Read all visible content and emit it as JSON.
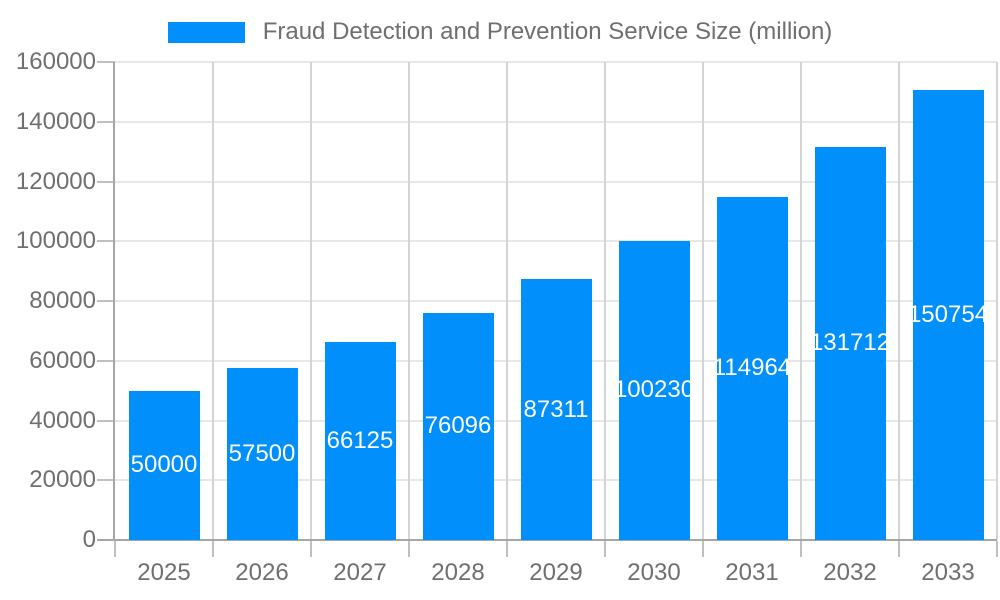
{
  "chart_data": {
    "type": "bar",
    "title": "Fraud Detection and Prevention Service Size (million)",
    "categories": [
      "2025",
      "2026",
      "2027",
      "2028",
      "2029",
      "2030",
      "2031",
      "2032",
      "2033"
    ],
    "values": [
      50000,
      57500,
      66125,
      76096,
      87311,
      100230,
      114964,
      131712,
      150754
    ],
    "bar_labels": [
      "50000",
      "57500",
      "66125",
      "76096",
      "87311",
      "100230",
      "114964",
      "131712",
      "150754"
    ],
    "xlabel": "",
    "ylabel": "",
    "ylim": [
      0,
      160000
    ],
    "yticks": [
      0,
      20000,
      40000,
      60000,
      80000,
      100000,
      120000,
      140000,
      160000
    ],
    "ytick_labels": [
      "0",
      "20000",
      "40000",
      "60000",
      "80000",
      "100000",
      "120000",
      "140000",
      "160000"
    ],
    "grid": true,
    "legend_position": "top",
    "colors": {
      "bar": "#008FFB",
      "bar_label": "#ffffff",
      "axis_line": "#a6a6a6",
      "grid_h": "#e7e7e7",
      "grid_v": "#d4d4d4",
      "tick": "#c0c0c0",
      "text": "#6f6f6f"
    }
  },
  "legend": {
    "items": [
      {
        "label": "Fraud Detection and Prevention Service Size (million)",
        "swatch_color": "#008FFB"
      }
    ]
  }
}
